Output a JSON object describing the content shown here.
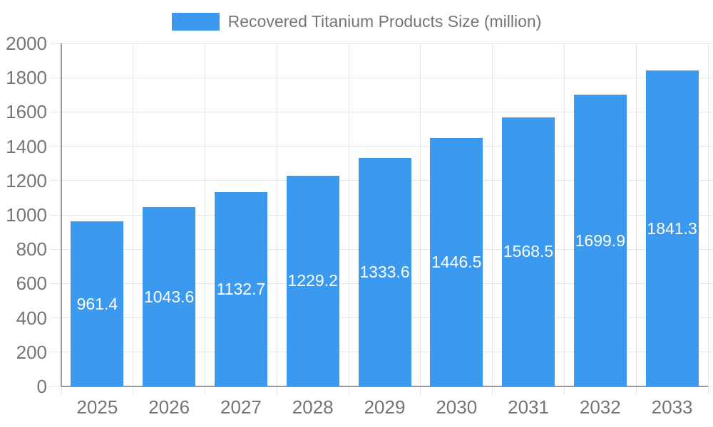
{
  "chart_data": {
    "type": "bar",
    "title": "",
    "categories": [
      "2025",
      "2026",
      "2027",
      "2028",
      "2029",
      "2030",
      "2031",
      "2032",
      "2033"
    ],
    "series": [
      {
        "name": "Recovered Titanium Products Size (million)",
        "values": [
          961.4,
          1043.6,
          1132.7,
          1229.2,
          1333.6,
          1446.5,
          1568.5,
          1699.9,
          1841.3
        ]
      }
    ],
    "xlabel": "",
    "ylabel": "",
    "ylim": [
      0,
      2000
    ],
    "yticks": [
      0,
      200,
      400,
      600,
      800,
      1000,
      1200,
      1400,
      1600,
      1800,
      2000
    ],
    "grid": true,
    "legend_position": "top",
    "value_labels": "inside-center",
    "colors": {
      "bar": "#3B99F0",
      "value_label": "#FFFFFF",
      "axis_text": "#757575",
      "grid_line": "#E5E5E5",
      "axis_line": "#999999"
    }
  }
}
